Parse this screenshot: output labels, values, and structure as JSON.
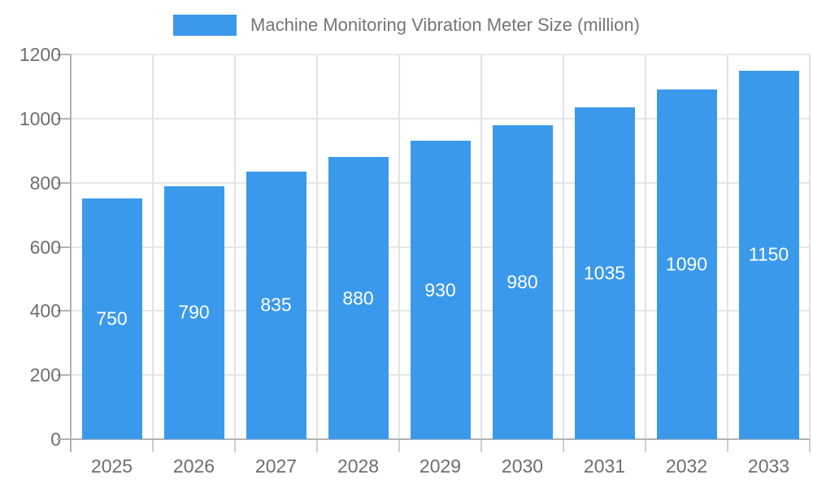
{
  "chart_data": {
    "type": "bar",
    "title": "Machine Monitoring Vibration Meter Size (million)",
    "categories": [
      "2025",
      "2026",
      "2027",
      "2028",
      "2029",
      "2030",
      "2031",
      "2032",
      "2033"
    ],
    "values": [
      750,
      790,
      835,
      880,
      930,
      980,
      1035,
      1090,
      1150
    ],
    "xlabel": "",
    "ylabel": "",
    "ylim": [
      0,
      1200
    ],
    "yticks": [
      0,
      200,
      400,
      600,
      800,
      1000,
      1200
    ],
    "grid": true,
    "legend_position": "top",
    "value_labels_inside_bars": true,
    "colors": {
      "bar": "#3B99EC",
      "value_label": "#FFFFFF",
      "grid_line": "#E7E7E7",
      "vertical_grid_line": "#E3E3E3",
      "axis_line": "#B3B3B3",
      "x_tick": "#CFCFCF",
      "axis_text": "#6E6E6E",
      "title_text": "#757575",
      "background": "#FFFFFF"
    }
  }
}
